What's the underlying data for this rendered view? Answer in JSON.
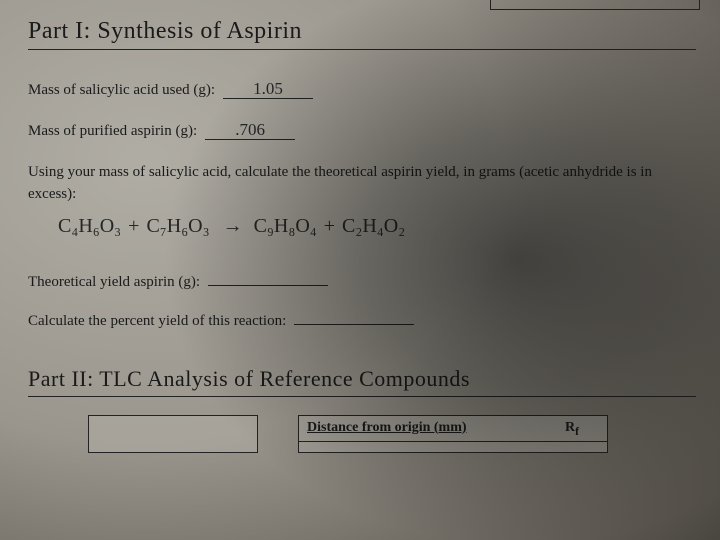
{
  "part1": {
    "title": "Part I: Synthesis of Aspirin",
    "fields": {
      "salicylic_label": "Mass of salicylic acid used (g):",
      "salicylic_value": "1.05",
      "aspirin_label": "Mass of purified aspirin (g):",
      "aspirin_value": ".706"
    },
    "calc_prompt_line1": "Using your mass of salicylic acid, calculate the theoretical aspirin yield, in grams (acetic anhydride is in",
    "calc_prompt_line2": "excess):",
    "equation": {
      "r1": {
        "formula": "C4H6O3",
        "display": "C₄H₆O₃"
      },
      "plus1": "+",
      "r2": {
        "formula": "C7H6O3",
        "display": "C₇H₆O₃"
      },
      "arrow": "→",
      "p1": {
        "formula": "C9H8O4",
        "display": "C₉H₈O₄"
      },
      "plus2": "+",
      "p2": {
        "formula": "C2H4O2",
        "display": "C₂H₄O₂"
      }
    },
    "theoretical_label": "Theoretical yield aspirin (g):",
    "theoretical_value": "",
    "percent_label": "Calculate the percent yield of this reaction:",
    "percent_value": ""
  },
  "part2": {
    "title": "Part II: TLC Analysis of Reference Compounds",
    "table": {
      "col1_header": "Distance from origin (mm)",
      "col2_header": "Rf"
    }
  },
  "colors": {
    "text": "#1a1a1a",
    "rule": "#222222",
    "paper_light": "#b0ada5",
    "paper_dark": "#2a2824"
  }
}
